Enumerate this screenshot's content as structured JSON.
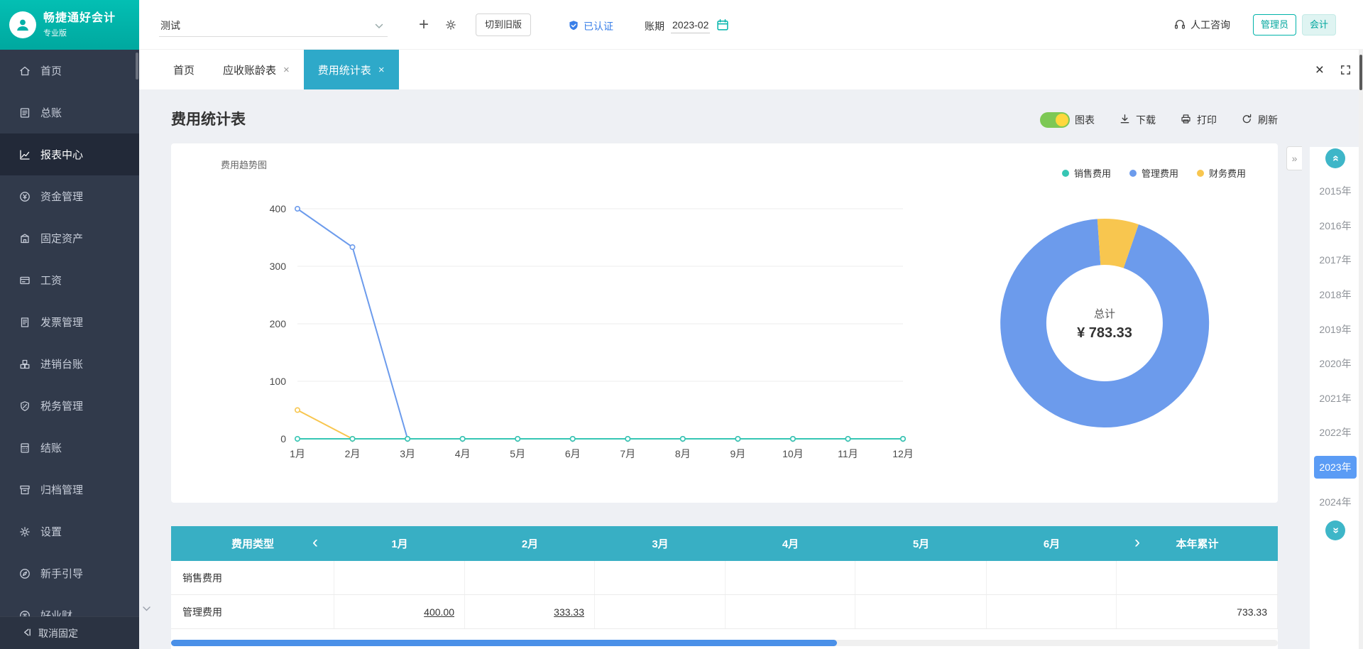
{
  "brand": {
    "logo_title": "畅捷通好会计",
    "logo_subtitle": "专业版"
  },
  "icons": {
    "close": "×",
    "prev": "‹",
    "next": "›",
    "double_chevron": "»",
    "collapse": "»",
    "plus": "+"
  },
  "topbar": {
    "workspace": "测试",
    "switch_old_label": "切到旧版",
    "certified_label": "已认证",
    "period_label": "账期",
    "period_value": "2023-02",
    "support_label": "人工咨询",
    "admin_label": "管理员",
    "role_label": "会计"
  },
  "tabs": [
    {
      "label": "首页",
      "closable": false,
      "active": false
    },
    {
      "label": "应收账龄表",
      "closable": true,
      "active": false
    },
    {
      "label": "费用统计表",
      "closable": true,
      "active": true
    }
  ],
  "sidebar": {
    "items": [
      {
        "label": "首页",
        "icon": "home-icon"
      },
      {
        "label": "总账",
        "icon": "ledger-icon"
      },
      {
        "label": "报表中心",
        "icon": "report-icon",
        "active": true
      },
      {
        "label": "资金管理",
        "icon": "fund-icon"
      },
      {
        "label": "固定资产",
        "icon": "asset-icon"
      },
      {
        "label": "工资",
        "icon": "salary-icon"
      },
      {
        "label": "发票管理",
        "icon": "invoice-icon"
      },
      {
        "label": "进销台账",
        "icon": "inventory-icon"
      },
      {
        "label": "税务管理",
        "icon": "tax-icon"
      },
      {
        "label": "结账",
        "icon": "closing-icon"
      },
      {
        "label": "归档管理",
        "icon": "archive-icon"
      },
      {
        "label": "设置",
        "icon": "settings-icon"
      },
      {
        "label": "新手引导",
        "icon": "guide-icon"
      },
      {
        "label": "好业财",
        "icon": "product-icon",
        "partial": true
      }
    ],
    "unpin_label": "取消固定"
  },
  "page": {
    "title": "费用统计表",
    "toggle_label": "图表",
    "download_label": "下载",
    "print_label": "打印",
    "refresh_label": "刷新"
  },
  "chart_data": {
    "type": "line+donut",
    "line": {
      "type": "line",
      "title": "费用趋势图",
      "categories": [
        "1月",
        "2月",
        "3月",
        "4月",
        "5月",
        "6月",
        "7月",
        "8月",
        "9月",
        "10月",
        "11月",
        "12月"
      ],
      "series": [
        {
          "name": "销售费用",
          "color": "#36c6b4",
          "values": [
            0,
            0,
            0,
            0,
            0,
            0,
            0,
            0,
            0,
            0,
            0,
            0
          ]
        },
        {
          "name": "管理费用",
          "color": "#6c9bec",
          "values": [
            400,
            333.33,
            0,
            0,
            0,
            0,
            0,
            0,
            0,
            0,
            0,
            0
          ]
        },
        {
          "name": "财务费用",
          "color": "#f8c64f",
          "values": [
            50,
            0,
            0,
            0,
            0,
            0,
            0,
            0,
            0,
            0,
            0,
            0
          ]
        }
      ],
      "yticks": [
        0,
        100,
        200,
        300,
        400
      ],
      "ylim": [
        0,
        400
      ],
      "grid": true,
      "legend_position": "top-right"
    },
    "donut": {
      "type": "pie",
      "center_label": "总计",
      "center_value": "¥ 783.33",
      "total": 783.33,
      "start_deg": 19,
      "slices": [
        {
          "name": "管理费用",
          "value": 733.33,
          "color": "#6c9bec"
        },
        {
          "name": "财务费用",
          "value": 50,
          "color": "#f8c64f"
        }
      ]
    }
  },
  "table": {
    "header": [
      "费用类型",
      "1月",
      "2月",
      "3月",
      "4月",
      "5月",
      "6月",
      "本年累计"
    ],
    "rows": [
      {
        "label": "销售费用",
        "cells": [
          "",
          "",
          "",
          "",
          "",
          "",
          ""
        ],
        "links": [
          false,
          false,
          false,
          false,
          false,
          false,
          false
        ]
      },
      {
        "label": "管理费用",
        "cells": [
          "400.00",
          "333.33",
          "",
          "",
          "",
          "",
          "733.33"
        ],
        "links": [
          true,
          true,
          false,
          false,
          false,
          false,
          false
        ]
      }
    ]
  },
  "year_panel": {
    "years": [
      "2015年",
      "2016年",
      "2017年",
      "2018年",
      "2019年",
      "2020年",
      "2021年",
      "2022年",
      "2023年",
      "2024年"
    ],
    "active": "2023年"
  },
  "ui_colors": {
    "brand_teal": "#00b3aa",
    "active_tab": "#2ea9c9",
    "table_header": "#38afc4",
    "active_year": "#5b9cf5",
    "toggle_track": "#7dc855",
    "toggle_knob": "#ffd83d",
    "hscroll_thumb": "#4a90e8",
    "certified_blue": "#3a7fe8",
    "sidebar_bg": "#313a4b"
  }
}
